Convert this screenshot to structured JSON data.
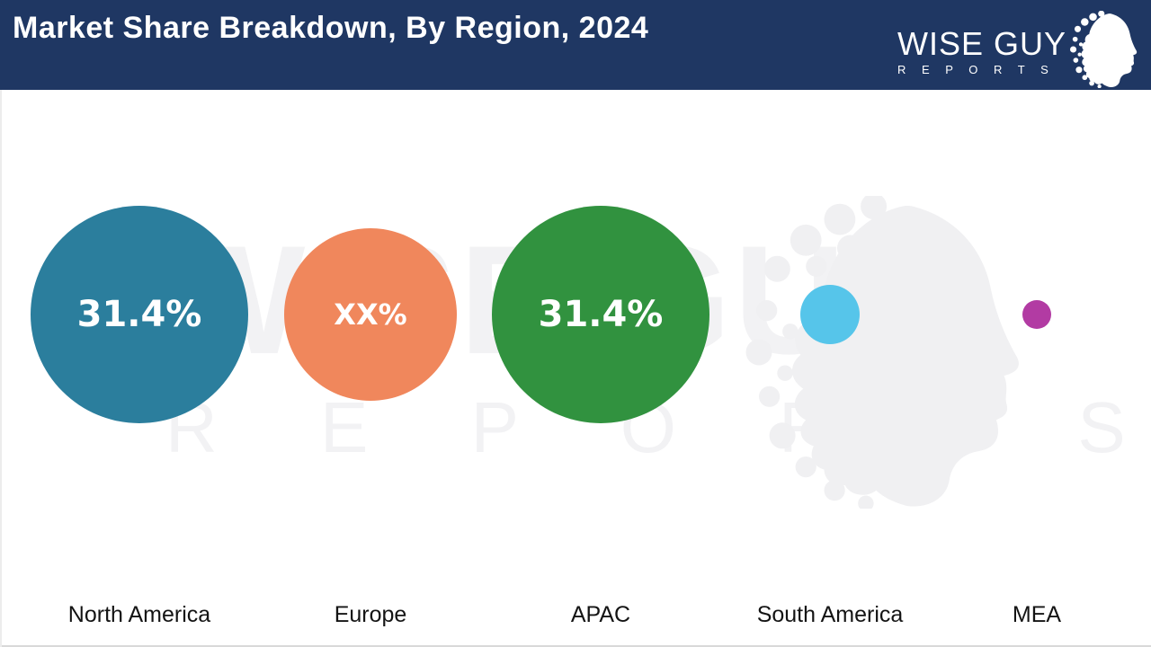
{
  "header": {
    "title": "Market Share Breakdown, By Region, 2024",
    "logo": {
      "name": "WISE GUY",
      "sub": "R E P O R T S"
    }
  },
  "watermark": {
    "name": "WISE GUY",
    "sub": "R E P O R T S"
  },
  "chart_data": {
    "type": "bubble",
    "title": "Market Share Breakdown, By Region, 2024",
    "legend_position": "category labels along bottom",
    "categories": [
      "North America",
      "Europe",
      "APAC",
      "South America",
      "MEA"
    ],
    "regions": [
      {
        "name": "North America",
        "value_label": "31.4%",
        "value": 31.4,
        "color": "#2b7e9d",
        "radius_px": 121
      },
      {
        "name": "Europe",
        "value_label": "XX%",
        "value": null,
        "color": "#f0875c",
        "radius_px": 96
      },
      {
        "name": "APAC",
        "value_label": "31.4%",
        "value": 31.4,
        "color": "#31923f",
        "radius_px": 121
      },
      {
        "name": "South America",
        "value_label": "",
        "value": null,
        "color": "#56c5ea",
        "radius_px": 33
      },
      {
        "name": "MEA",
        "value_label": "",
        "value": null,
        "color": "#b23ba3",
        "radius_px": 16
      }
    ]
  },
  "colors": {
    "header_bg": "#1f3763",
    "label_text": "#141414",
    "watermark": "#f2f2f4",
    "divider": "#d9d9d9"
  }
}
